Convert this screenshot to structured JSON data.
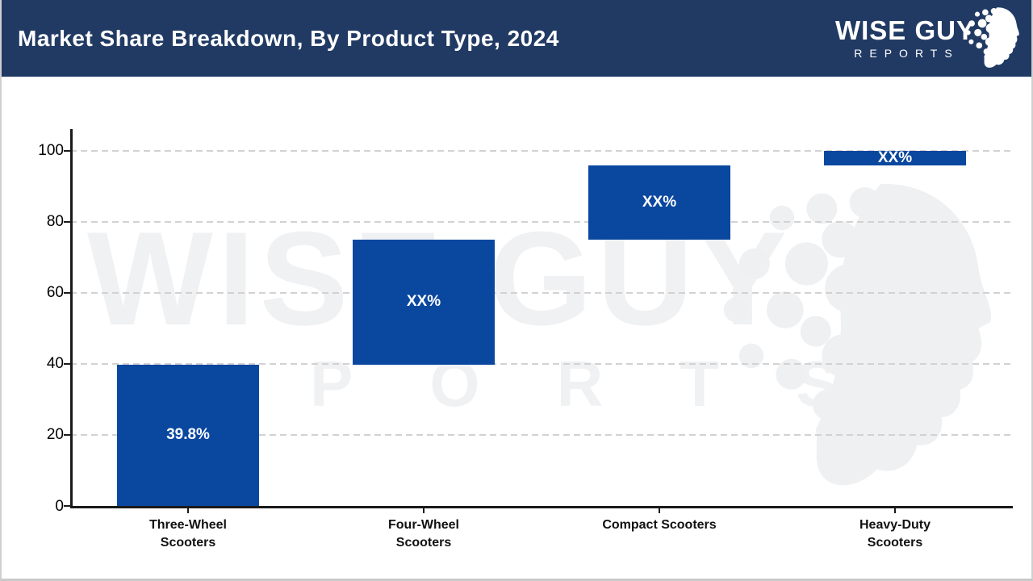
{
  "header": {
    "title": "Market Share Breakdown, By Product Type, 2024",
    "logo": {
      "line1": "WISE GUY",
      "line2": "REPORTS"
    }
  },
  "watermark": {
    "line1": "WISE GUY",
    "line2": "PORTS"
  },
  "chart_data": {
    "type": "bar",
    "subtype": "waterfall",
    "title": "Market Share Breakdown, By Product Type, 2024",
    "categories": [
      "Three-Wheel Scooters",
      "Four-Wheel Scooters",
      "Compact Scooters",
      "Heavy-Duty Scooters"
    ],
    "category_label_lines": [
      [
        "Three-Wheel",
        "Scooters"
      ],
      [
        "Four-Wheel",
        "Scooters"
      ],
      [
        "Compact Scooters"
      ],
      [
        "Heavy-Duty",
        "Scooters"
      ]
    ],
    "bars": [
      {
        "category": "Three-Wheel Scooters",
        "start": 0,
        "end": 39.8,
        "label": "39.8%"
      },
      {
        "category": "Four-Wheel Scooters",
        "start": 39.8,
        "end": 75,
        "label": "XX%"
      },
      {
        "category": "Compact Scooters",
        "start": 75,
        "end": 96,
        "label": "XX%"
      },
      {
        "category": "Heavy-Duty Scooters",
        "start": 96,
        "end": 100,
        "label": "XX%"
      }
    ],
    "xlabel": "",
    "ylabel": "",
    "ylim": [
      0,
      100
    ],
    "yticks": [
      0,
      20,
      40,
      60,
      80,
      100
    ],
    "grid": "horizontal-dashed",
    "legend": null
  },
  "colors": {
    "header_bg": "#213a64",
    "bar": "#0a479f",
    "bar_label": "#ffffff",
    "grid": "#d2d2d2",
    "axis": "#1a1a1a",
    "watermark": "#f0f1f3"
  }
}
